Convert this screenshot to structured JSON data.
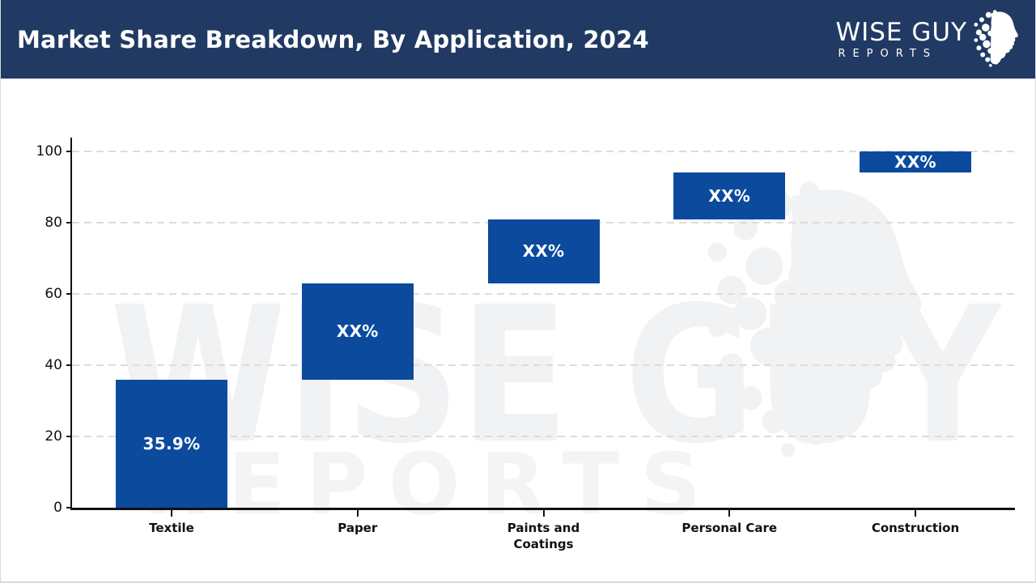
{
  "header": {
    "title": "Market Share Breakdown, By Application, 2024",
    "logo": {
      "line1": "WISE GUY",
      "line2": "REPORTS"
    }
  },
  "watermark": {
    "line1": "WISE GUY",
    "line2": "REPORTS"
  },
  "colors": {
    "header_bg": "#213A63",
    "bar_fill": "#0C4A9E",
    "bar_label_text": "#FFFFFF",
    "gridline": "#DCDCDC",
    "axis": "#111111",
    "watermark": "#F1F2F4"
  },
  "chart_data": {
    "type": "bar",
    "subtype": "waterfall",
    "title": "Market Share Breakdown, By Application, 2024",
    "categories": [
      "Textile",
      "Paper",
      "Paints and Coatings",
      "Personal Care",
      "Construction"
    ],
    "series": [
      {
        "name": "Market Share (%)",
        "segments": [
          {
            "category": "Textile",
            "start": 0,
            "end": 35.9,
            "label": "35.9%"
          },
          {
            "category": "Paper",
            "start": 35.9,
            "end": 63,
            "label": "XX%"
          },
          {
            "category": "Paints and Coatings",
            "start": 63,
            "end": 81,
            "label": "XX%"
          },
          {
            "category": "Personal Care",
            "start": 81,
            "end": 94,
            "label": "XX%"
          },
          {
            "category": "Construction",
            "start": 94,
            "end": 100,
            "label": "XX%"
          }
        ]
      }
    ],
    "xlabel": "",
    "ylabel": "",
    "ylim": [
      0,
      100
    ],
    "yticks": [
      0,
      20,
      40,
      60,
      80,
      100
    ],
    "grid": "horizontal-dashed",
    "legend": "none"
  }
}
